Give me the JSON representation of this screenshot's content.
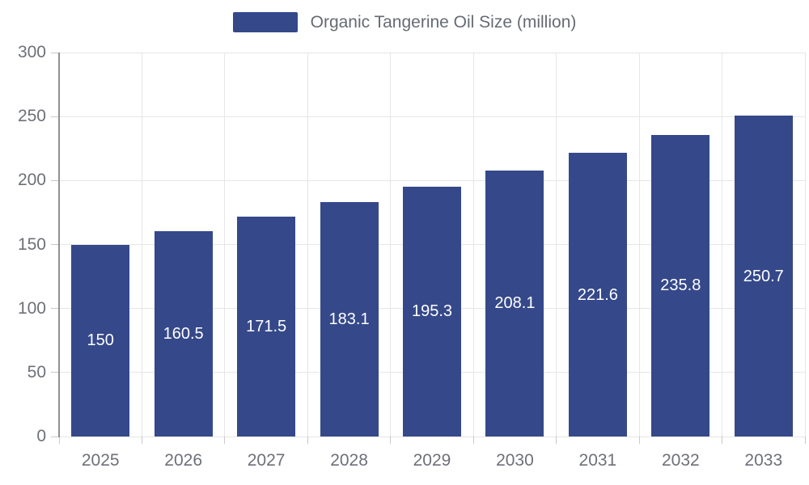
{
  "chart_data": {
    "type": "bar",
    "title": "Organic Tangerine Oil Size (million)",
    "legend": [
      "Organic Tangerine Oil Size (million)"
    ],
    "legend_position": "top-center",
    "categories": [
      "2025",
      "2026",
      "2027",
      "2028",
      "2029",
      "2030",
      "2031",
      "2032",
      "2033"
    ],
    "series": [
      {
        "name": "Organic Tangerine Oil Size (million)",
        "values": [
          150,
          160.5,
          171.5,
          183.1,
          195.3,
          208.1,
          221.6,
          235.8,
          250.7
        ]
      }
    ],
    "value_labels": [
      "150",
      "160.5",
      "171.5",
      "183.1",
      "195.3",
      "208.1",
      "221.6",
      "235.8",
      "250.7"
    ],
    "value_label_position": "inside-center",
    "xlabel": "",
    "ylabel": "",
    "ylim": [
      0,
      300
    ],
    "y_ticks": [
      0,
      50,
      100,
      150,
      200,
      250,
      300
    ],
    "grid": true,
    "colors": {
      "bar": "#35488a",
      "axis_line": "#8f9096",
      "grid_line": "#e6e6e6",
      "tick": "#c8c8cc",
      "axis_text": "#6e7079",
      "legend_text": "#666b73",
      "bar_label_text": "#ffffff",
      "background": "#ffffff"
    }
  }
}
